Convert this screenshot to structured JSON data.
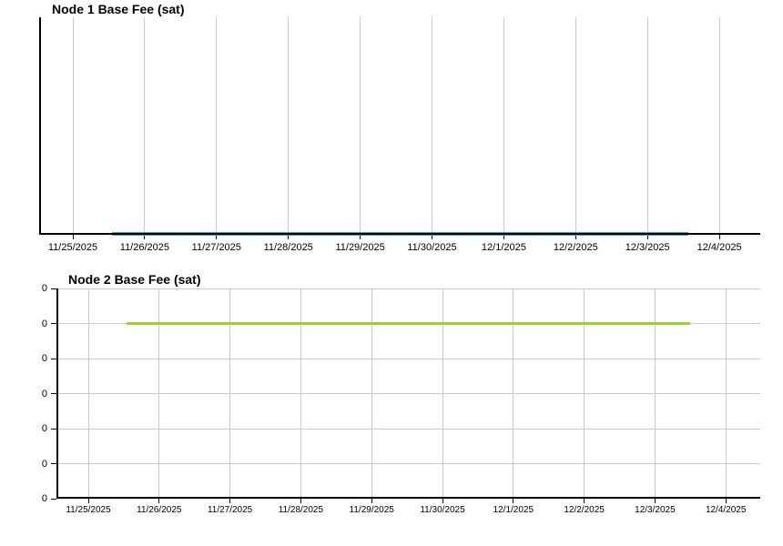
{
  "page": {
    "background_color": "#ffffff",
    "axis_color": "#000000",
    "gridline_color": "#c9c9c9"
  },
  "chart_data": [
    {
      "type": "line",
      "title": "Node 1 Base Fee (sat)",
      "xlabel": "",
      "ylabel": "",
      "x_tick_labels": [
        "11/25/2025",
        "11/26/2025",
        "11/27/2025",
        "11/28/2025",
        "11/29/2025",
        "11/30/2025",
        "12/1/2025",
        "12/2/2025",
        "12/3/2025",
        "12/4/2025"
      ],
      "y_tick_labels": [],
      "grid": {
        "vertical": true,
        "horizontal": false,
        "color": "#c9c9c9"
      },
      "legend": "none",
      "series": [
        {
          "name": "Node 1 base fee",
          "color": "#3FA9B2",
          "value": 0,
          "start": "11/25/2025 13:00",
          "end": "12/3/2025 13:30",
          "note": "constant flat line at 0, drawn along the x-axis"
        }
      ]
    },
    {
      "type": "line",
      "title": "Node 2 Base Fee (sat)",
      "xlabel": "",
      "ylabel": "",
      "x_tick_labels": [
        "11/25/2025",
        "11/26/2025",
        "11/27/2025",
        "11/28/2025",
        "11/29/2025",
        "11/30/2025",
        "12/1/2025",
        "12/2/2025",
        "12/3/2025",
        "12/4/2025"
      ],
      "y_tick_labels": [
        "0",
        "0",
        "0",
        "0",
        "0",
        "0",
        "0"
      ],
      "grid": {
        "vertical": true,
        "horizontal": true,
        "color": "#c9c9c9"
      },
      "legend": "none",
      "series": [
        {
          "name": "Node 2 base fee",
          "color": "#9CCB3B",
          "value": 0,
          "start": "11/25/2025 13:00",
          "end": "12/3/2025 12:00",
          "note": "constant flat line at 0, drawn at the second gridline from the top"
        }
      ]
    }
  ]
}
